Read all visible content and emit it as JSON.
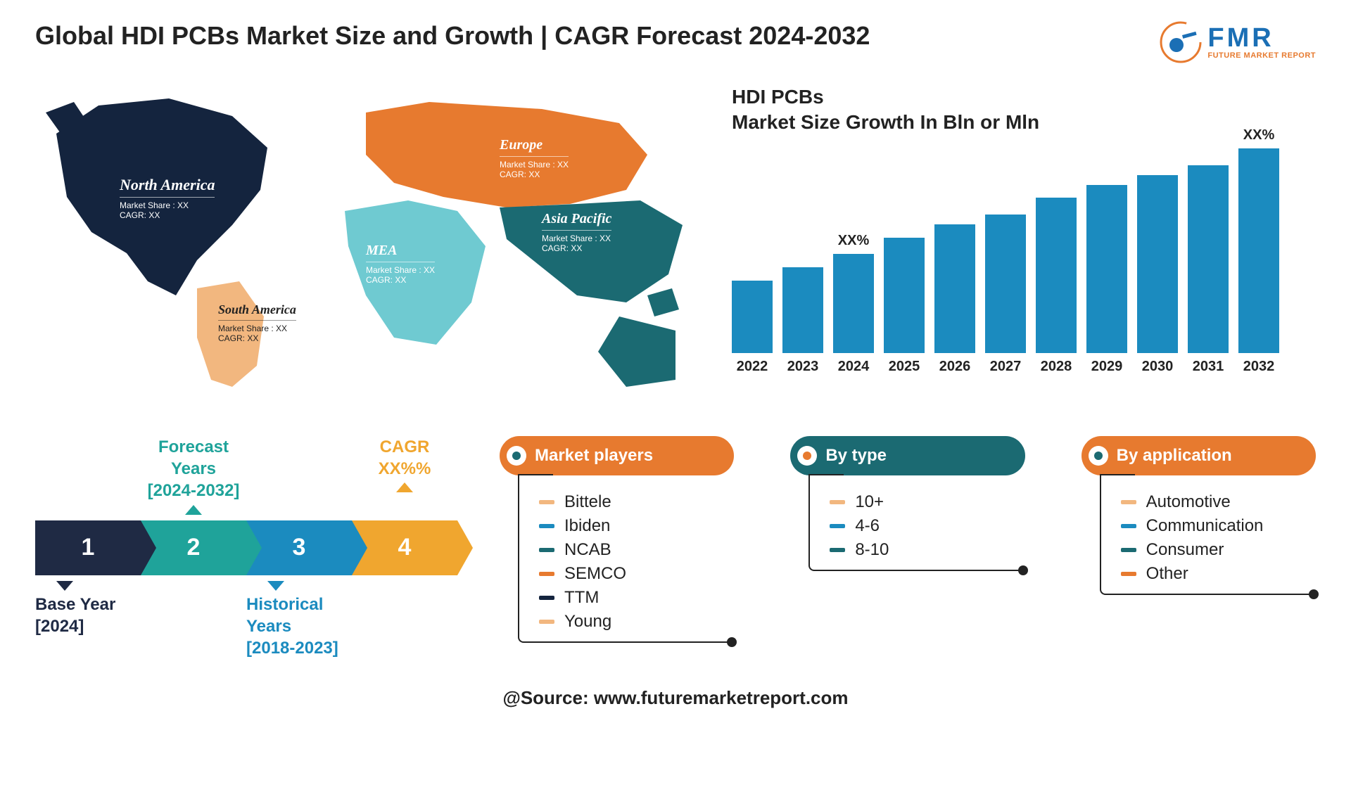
{
  "title": "Global HDI PCBs Market Size and Growth | CAGR Forecast 2024-2032",
  "logo": {
    "fmr": "FMR",
    "tagline": "FUTURE MARKET REPORT"
  },
  "map": {
    "regions": [
      {
        "name": "North America",
        "share": "Market Share : XX",
        "cagr": "CAGR: XX",
        "color": "#14243e",
        "label_color": "#ffffff"
      },
      {
        "name": "South America",
        "share": "Market Share : XX",
        "cagr": "CAGR: XX",
        "color": "#f2b77f",
        "label_color": "#222222"
      },
      {
        "name": "Europe",
        "share": "Market Share : XX",
        "cagr": "CAGR: XX",
        "color": "#e77a2f",
        "label_color": "#ffffff"
      },
      {
        "name": "MEA",
        "share": "Market Share : XX",
        "cagr": "CAGR: XX",
        "color": "#6fcad1",
        "label_color": "#ffffff"
      },
      {
        "name": "Asia Pacific",
        "share": "Market Share : XX",
        "cagr": "CAGR: XX",
        "color": "#1b6a72",
        "label_color": "#ffffff"
      }
    ]
  },
  "chart": {
    "title": "HDI PCBs\nMarket Size Growth In Bln or Mln",
    "bar_color": "#1b8bbf",
    "years": [
      "2022",
      "2023",
      "2024",
      "2025",
      "2026",
      "2027",
      "2028",
      "2029",
      "2030",
      "2031",
      "2032"
    ],
    "values": [
      110,
      130,
      150,
      175,
      195,
      210,
      235,
      255,
      270,
      285,
      310
    ],
    "max_value": 320,
    "top_labels": {
      "2": "XX%",
      "10": "XX%"
    }
  },
  "timeline": {
    "segments": [
      {
        "num": "1",
        "color": "#1f2a44"
      },
      {
        "num": "2",
        "color": "#1fa39a"
      },
      {
        "num": "3",
        "color": "#1b8bbf"
      },
      {
        "num": "4",
        "color": "#f0a62f"
      }
    ],
    "top_labels": [
      {
        "seg": 1,
        "text": "Forecast Years",
        "sub": "[2024-2032]",
        "color": "#1fa39a"
      },
      {
        "seg": 3,
        "text": "CAGR",
        "sub": "XX%%",
        "color": "#f0a62f"
      }
    ],
    "bottom_labels": [
      {
        "seg": 0,
        "text": "Base Year",
        "sub": "[2024]",
        "color": "#1f2a44"
      },
      {
        "seg": 2,
        "text": "Historical Years",
        "sub": "[2018-2023]",
        "color": "#1b8bbf"
      }
    ]
  },
  "categories": [
    {
      "title": "Market players",
      "header_color": "#e77a2f",
      "dot_color": "#1b6a72",
      "items": [
        {
          "label": "Bittele",
          "bullet_color": "#f2b77f"
        },
        {
          "label": "Ibiden",
          "bullet_color": "#1b8bbf"
        },
        {
          "label": "NCAB",
          "bullet_color": "#1b6a72"
        },
        {
          "label": "SEMCO",
          "bullet_color": "#e77a2f"
        },
        {
          "label": "TTM",
          "bullet_color": "#14243e"
        },
        {
          "label": "Young",
          "bullet_color": "#f2b77f"
        }
      ]
    },
    {
      "title": "By type",
      "header_color": "#1b6a72",
      "dot_color": "#e77a2f",
      "items": [
        {
          "label": "10+",
          "bullet_color": "#f2b77f"
        },
        {
          "label": "4-6",
          "bullet_color": "#1b8bbf"
        },
        {
          "label": "8-10",
          "bullet_color": "#1b6a72"
        }
      ]
    },
    {
      "title": "By application",
      "header_color": "#e77a2f",
      "dot_color": "#1b6a72",
      "items": [
        {
          "label": "Automotive",
          "bullet_color": "#f2b77f"
        },
        {
          "label": "Communication",
          "bullet_color": "#1b8bbf"
        },
        {
          "label": "Consumer",
          "bullet_color": "#1b6a72"
        },
        {
          "label": "Other",
          "bullet_color": "#e77a2f"
        }
      ]
    }
  ],
  "source": "@Source: www.futuremarketreport.com"
}
